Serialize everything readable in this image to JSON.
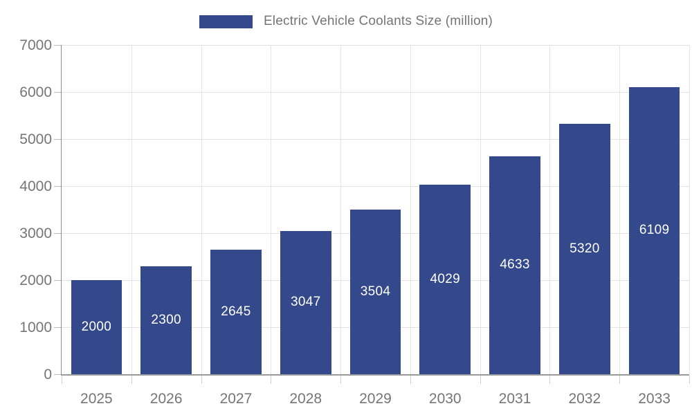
{
  "legend": {
    "label": "Electric Vehicle Coolants Size (million)"
  },
  "chart_data": {
    "type": "bar",
    "title": "Electric Vehicle Coolants Size (million)",
    "categories": [
      "2025",
      "2026",
      "2027",
      "2028",
      "2029",
      "2030",
      "2031",
      "2032",
      "2033"
    ],
    "values": [
      2000,
      2300,
      2645,
      3047,
      3504,
      4029,
      4633,
      5320,
      6109
    ],
    "series_name": "Electric Vehicle Coolants Size (million)",
    "xlabel": "",
    "ylabel": "",
    "ylim": [
      0,
      7000
    ],
    "y_ticks": [
      0,
      1000,
      2000,
      3000,
      4000,
      5000,
      6000,
      7000
    ],
    "grid": true,
    "legend_position": "top-center",
    "bar_color": "#34498B",
    "value_label_color": "#ffffff",
    "axis_text_color": "#757575"
  }
}
